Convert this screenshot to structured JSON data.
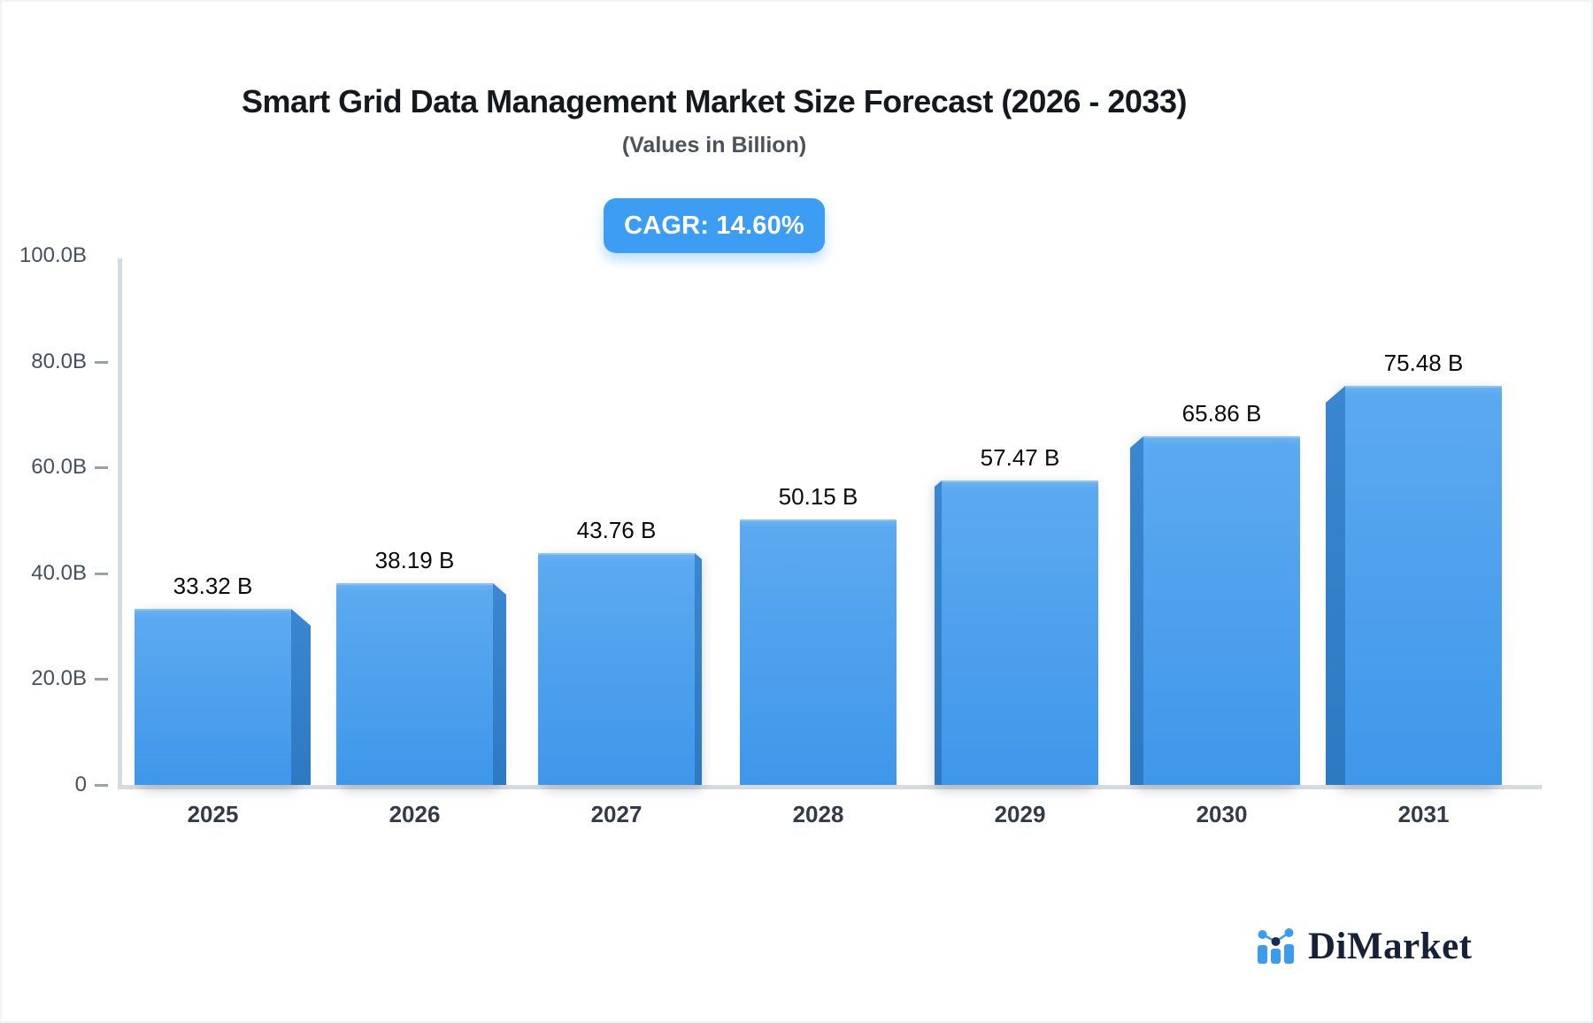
{
  "title": "Smart Grid Data Management Market Size Forecast (2026 - 2033)",
  "subtitle": "(Values in Billion)",
  "badge": {
    "label": "CAGR: 14.60%"
  },
  "brand": {
    "name": "DiMarket"
  },
  "colors": {
    "accent_blue": "#3d9df2",
    "bar_face_top": "#6cb3f3",
    "bar_face_bottom": "#3f97ea",
    "bar_side": "#2d79c2",
    "axis_line": "#d7dade",
    "tick_mark": "#99a1ad",
    "brand_navy": "#172138",
    "brand_blue": "#3d9bed"
  },
  "chart_data": {
    "type": "bar",
    "title": "Smart Grid Data Management Market Size Forecast (2026 - 2033)",
    "subtitle": "(Values in Billion)",
    "annotation": "CAGR: 14.60%",
    "categories": [
      "2025",
      "2026",
      "2027",
      "2028",
      "2029",
      "2030",
      "2031"
    ],
    "values": [
      33.32,
      38.19,
      43.76,
      50.15,
      57.47,
      65.86,
      75.48
    ],
    "value_labels": [
      "33.32 B",
      "38.19 B",
      "43.76 B",
      "50.15 B",
      "57.47 B",
      "65.86 B",
      "75.48 B"
    ],
    "xlabel": "",
    "ylabel": "",
    "ylim": [
      0,
      100
    ],
    "yticks": [
      "100.0B",
      "80.0B",
      "60.0B",
      "40.0B",
      "20.0B",
      "0"
    ],
    "ytick_values": [
      100,
      80,
      60,
      40,
      20,
      0
    ],
    "grid": false,
    "legend": false,
    "bar_style": "3d-perspective-to-center",
    "value_label_position": "above"
  }
}
